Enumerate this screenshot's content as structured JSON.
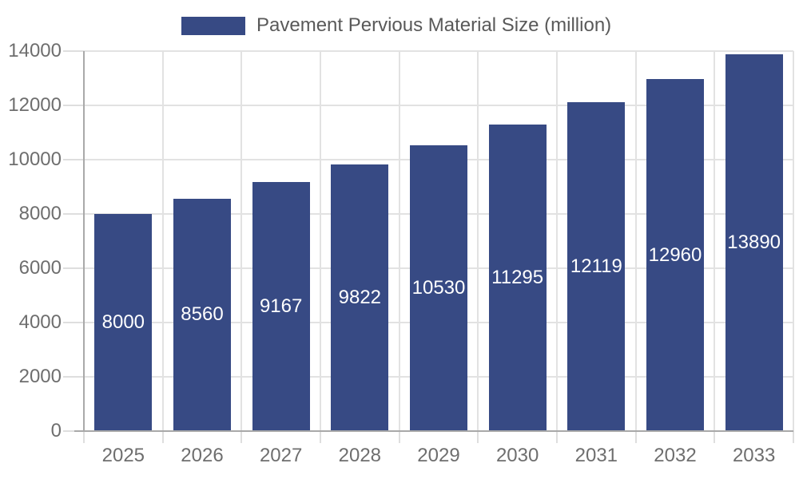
{
  "chart_data": {
    "type": "bar",
    "title": "Pavement Pervious Material Size (million)",
    "categories": [
      "2025",
      "2026",
      "2027",
      "2028",
      "2029",
      "2030",
      "2031",
      "2032",
      "2033"
    ],
    "values": [
      8000,
      8560,
      9167,
      9822,
      10530,
      11295,
      12119,
      12960,
      13890
    ],
    "xlabel": "",
    "ylabel": "",
    "ylim": [
      0,
      14000
    ],
    "yticks": [
      0,
      2000,
      4000,
      6000,
      8000,
      10000,
      12000,
      14000
    ],
    "grid": true,
    "legend_position": "top",
    "value_labels": "inside-center-white",
    "series": [
      {
        "name": "Pavement Pervious Material Size (million)",
        "values": [
          8000,
          8560,
          9167,
          9822,
          10530,
          11295,
          12119,
          12960,
          13890
        ]
      }
    ]
  },
  "legend": {
    "label": "Pavement Pervious Material Size (million)",
    "swatch_icon": "filled-rect-swatch"
  },
  "palette": {
    "bar_fill": "#374a84",
    "bar_label": "#ffffff",
    "grid_line": "#e2e2e2",
    "axis_line": "#a9a9a9",
    "tick_mark": "#dedede",
    "tick_label": "#6e6e6e",
    "legend_text": "#595959",
    "background": "#ffffff"
  }
}
